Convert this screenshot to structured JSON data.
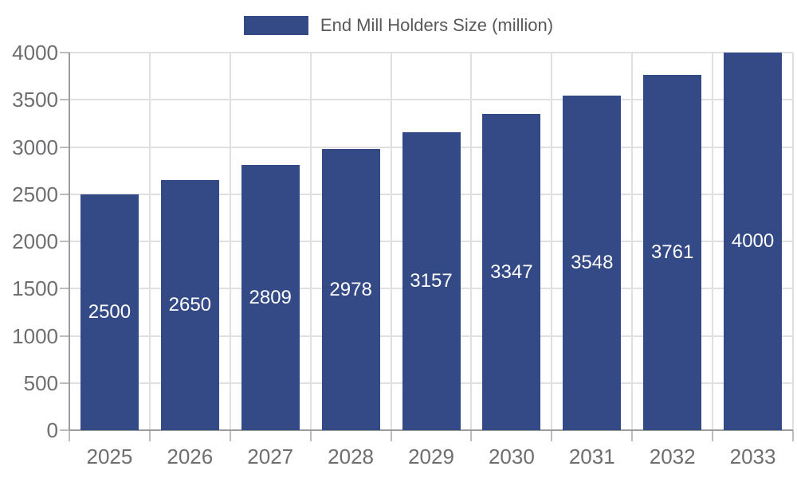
{
  "chart_data": {
    "type": "bar",
    "title": "",
    "series_name": "End Mill Holders Size (million)",
    "categories": [
      "2025",
      "2026",
      "2027",
      "2028",
      "2029",
      "2030",
      "2031",
      "2032",
      "2033"
    ],
    "values": [
      2500,
      2650,
      2809,
      2978,
      3157,
      3347,
      3548,
      3761,
      4000
    ],
    "xlabel": "",
    "ylabel": "",
    "ylim": [
      0,
      4000
    ],
    "yticks": [
      0,
      500,
      1000,
      1500,
      2000,
      2500,
      3000,
      3500,
      4000
    ],
    "grid": true,
    "legend_position": "top-center",
    "value_labels": "inside-middle"
  },
  "colors": {
    "bar": "#344a86",
    "value_label": "#ffffff",
    "tick_label": "#6d6e70",
    "legend_text": "#58595b",
    "grid": "#e0e0e0",
    "axis": "#9c9c9c",
    "tick": "#bdbdbd",
    "background": "#ffffff"
  }
}
